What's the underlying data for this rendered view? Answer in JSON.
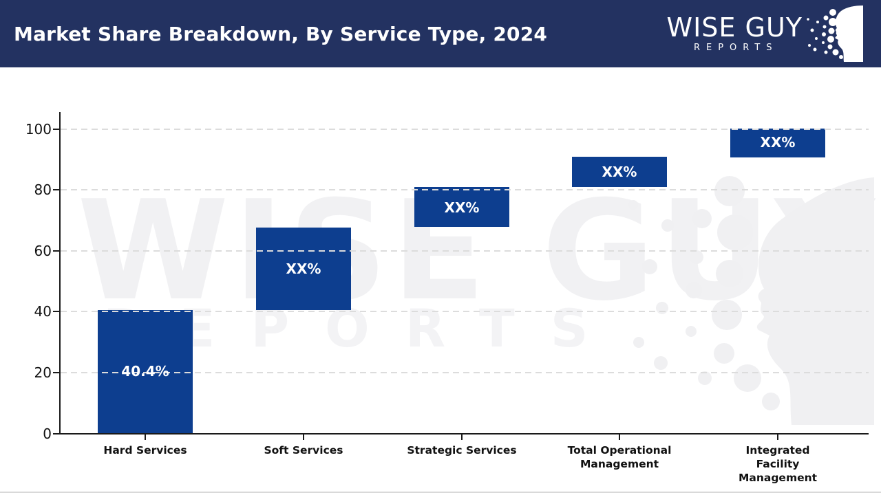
{
  "header": {
    "title": "Market Share Breakdown, By Service Type, 2024",
    "logo": {
      "line1": "WISE GUY",
      "line2": "REPORTS"
    },
    "bg_color": "#233261",
    "text_color": "#ffffff"
  },
  "watermark": {
    "line1": "WISE GUY",
    "line2": "REPORTS"
  },
  "chart_data": {
    "type": "bar",
    "subtype": "waterfall",
    "title": "Market Share Breakdown, By Service Type, 2024",
    "xlabel": "",
    "ylabel": "",
    "categories": [
      "Hard Services",
      "Soft Services",
      "Strategic Services",
      "Total Operational Management",
      "Integrated Facility Management"
    ],
    "segments": [
      {
        "category": "Hard Services",
        "start": 0,
        "end": 40.4,
        "label": "40.4%"
      },
      {
        "category": "Soft Services",
        "start": 40.4,
        "end": 67.4,
        "label": "XX%"
      },
      {
        "category": "Strategic Services",
        "start": 67.4,
        "end": 80.6,
        "label": "XX%"
      },
      {
        "category": "Total Operational Management",
        "start": 80.6,
        "end": 90.6,
        "label": "XX%"
      },
      {
        "category": "Integrated Facility Management",
        "start": 90.6,
        "end": 100,
        "label": "XX%"
      }
    ],
    "y_ticks": [
      0,
      20,
      40,
      60,
      80,
      100
    ],
    "ylim": [
      0,
      105
    ],
    "grid": "horizontal-dashed",
    "legend": "none",
    "bar_color": "#0d3e8f",
    "bar_label_color": "#ffffff",
    "grid_color": "#dcdcdc",
    "axis_color": "#1a1a1a"
  }
}
